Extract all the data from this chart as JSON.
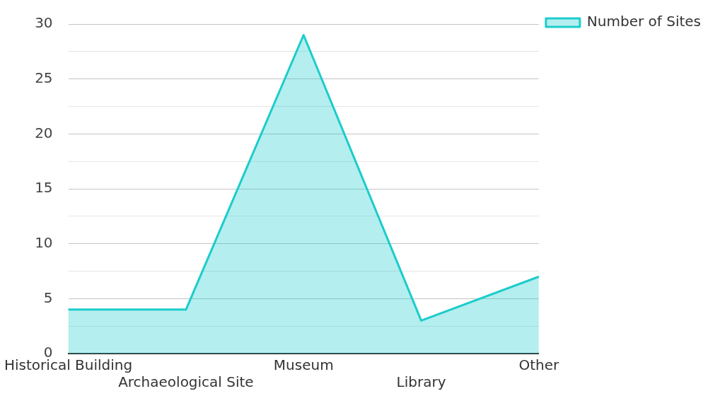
{
  "chart_data": {
    "type": "area",
    "categories": [
      "Historical Building",
      "Archaeological Site",
      "Museum",
      "Library",
      "Other"
    ],
    "series": [
      {
        "name": "Number of Sites",
        "color": "#1ccccc",
        "values": [
          4,
          4,
          29,
          3,
          7
        ]
      }
    ],
    "ylim": [
      0,
      30
    ],
    "yticks": [
      0,
      {
        "value": 2.5,
        "label": null
      },
      5,
      {
        "value": 7.5,
        "label": null
      },
      10,
      {
        "value": 12.5,
        "label": null
      },
      15,
      {
        "value": 17.5,
        "label": null
      },
      20,
      {
        "value": 22.5,
        "label": null
      },
      25,
      {
        "value": 27.5,
        "label": null
      },
      30
    ],
    "grid": "y",
    "legend": "top right"
  }
}
